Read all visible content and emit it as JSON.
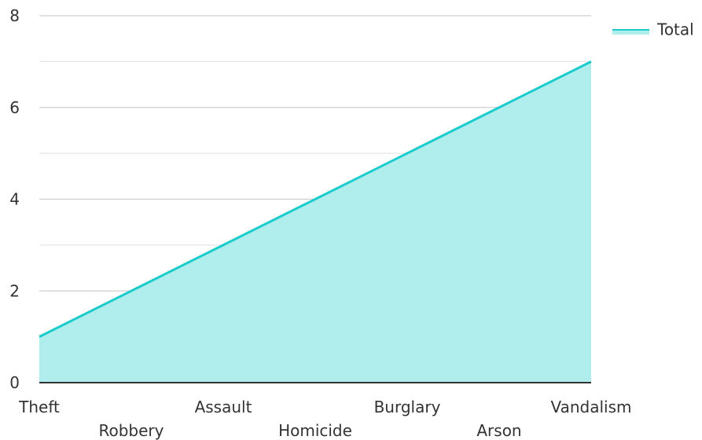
{
  "chart_data": {
    "type": "area",
    "categories": [
      "Theft",
      "Robbery",
      "Assault",
      "Homicide",
      "Burglary",
      "Arson",
      "Vandalism"
    ],
    "series": [
      {
        "name": "Total",
        "values": [
          1,
          2,
          3,
          4,
          5,
          6,
          7
        ]
      }
    ],
    "title": "",
    "xlabel": "",
    "ylabel": "",
    "ylim": [
      0,
      8
    ],
    "yticks": [
      "0",
      "2",
      "4",
      "6",
      "8"
    ],
    "grid": true,
    "legend": "top-right",
    "colors": {
      "line": "#1ccccc",
      "fill": "#b0eeee",
      "grid": "#cfcfcf",
      "axis": "#333333"
    }
  }
}
